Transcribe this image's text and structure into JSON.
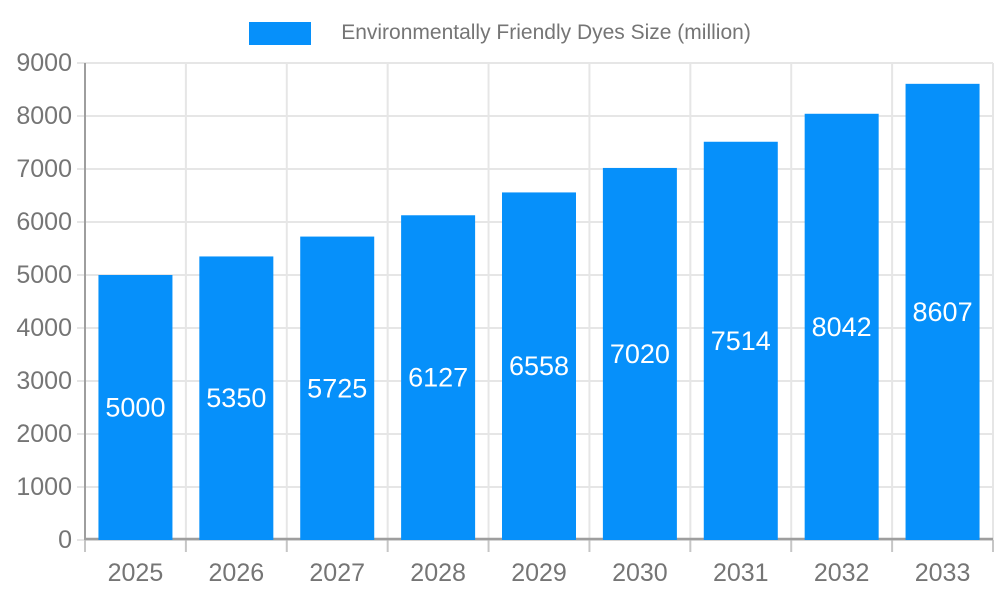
{
  "legend": {
    "label": "Environmentally Friendly Dyes Size (million)"
  },
  "chart_data": {
    "type": "bar",
    "title": "Environmentally Friendly Dyes Size (million)",
    "categories": [
      "2025",
      "2026",
      "2027",
      "2028",
      "2029",
      "2030",
      "2031",
      "2032",
      "2033"
    ],
    "values": [
      5000,
      5350,
      5725,
      6127,
      6558,
      7020,
      7514,
      8042,
      8607
    ],
    "xlabel": "",
    "ylabel": "",
    "ylim": [
      0,
      9000
    ],
    "ytick_step": 1000,
    "grid": true,
    "legend_position": "top-center",
    "bar_labels_inside": true,
    "colors": {
      "bar": "#0690FA",
      "grid": "#e6e6e6",
      "axis": "#9e9e9e",
      "x_tick": "#c6c6c6",
      "tick_label": "#757575",
      "bar_label": "#ffffff",
      "legend_text": "#757575"
    }
  }
}
